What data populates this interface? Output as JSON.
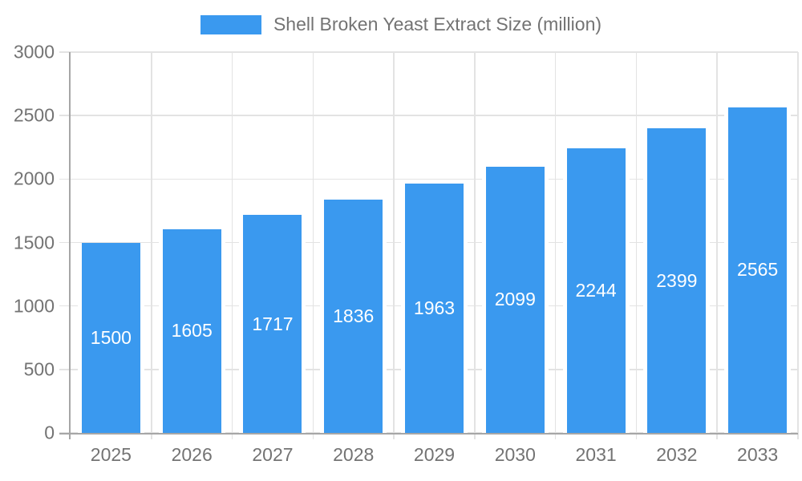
{
  "chart_data": {
    "type": "bar",
    "title": "Shell Broken Yeast Extract Size (million)",
    "categories": [
      "2025",
      "2026",
      "2027",
      "2028",
      "2029",
      "2030",
      "2031",
      "2032",
      "2033"
    ],
    "series": [
      {
        "name": "Shell Broken Yeast Extract Size (million)",
        "values": [
          1500,
          1605,
          1717,
          1836,
          1963,
          2099,
          2244,
          2399,
          2565
        ]
      }
    ],
    "value_labels": [
      1500,
      1605,
      1717,
      1836,
      1963,
      2099,
      2244,
      2399,
      2565
    ],
    "value_label_position": "inside-center",
    "xlabel": "",
    "ylabel": "",
    "ylim": [
      0,
      3000
    ],
    "y_ticks": [
      0,
      500,
      1000,
      1500,
      2000,
      2500,
      3000
    ],
    "grid": true,
    "legend_position": "top-center"
  },
  "colors": {
    "bar": "#3a99ef",
    "value_label": "#ffffff",
    "text": "#737373",
    "axis_line": "#a6a6a6",
    "gridline": "#e3e3e3",
    "background": "#ffffff"
  }
}
